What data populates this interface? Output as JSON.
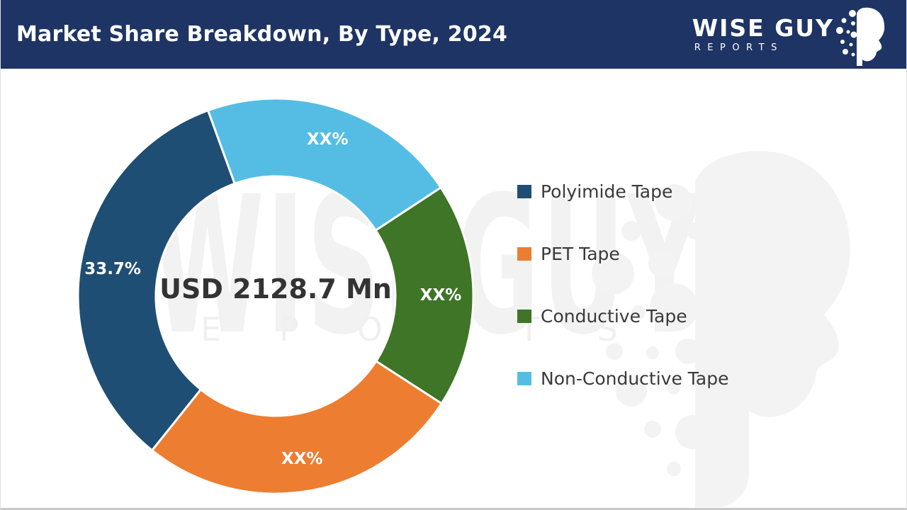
{
  "header": {
    "title": "Market Share Breakdown, By Type, 2024",
    "bg_color": "#1e3464",
    "logo": {
      "line1": "WISE GUY",
      "line2": "REPORTS"
    }
  },
  "watermark": {
    "text_line1": "WISEGUY",
    "text_line2": "REPORTS"
  },
  "chart_data": {
    "type": "pie",
    "subtype": "donut",
    "title": "Market Share Breakdown, By Type, 2024",
    "center_label": "USD 2128.7 Mn",
    "start_angle": 110,
    "direction": "counterclockwise",
    "outer_radius": 279,
    "inner_radius": 169,
    "label_radius": 233,
    "slice_border_color": "#ffffff",
    "legend_position": "right",
    "categories": [
      "Polyimide Tape",
      "PET Tape",
      "Conductive Tape",
      "Non-Conductive Tape"
    ],
    "values": [
      33.7,
      26.6,
      18.4,
      21.3
    ],
    "segments": [
      {
        "name": "Polyimide Tape",
        "value": 33.7,
        "display_label": "33.7%",
        "color": "#1f4e74"
      },
      {
        "name": "PET Tape",
        "value": 26.6,
        "display_label": "XX%",
        "color": "#ed7d31"
      },
      {
        "name": "Conductive Tape",
        "value": 18.4,
        "display_label": "XX%",
        "color": "#3e7527"
      },
      {
        "name": "Non-Conductive Tape",
        "value": 21.3,
        "display_label": "XX%",
        "color": "#55bde3"
      }
    ]
  }
}
